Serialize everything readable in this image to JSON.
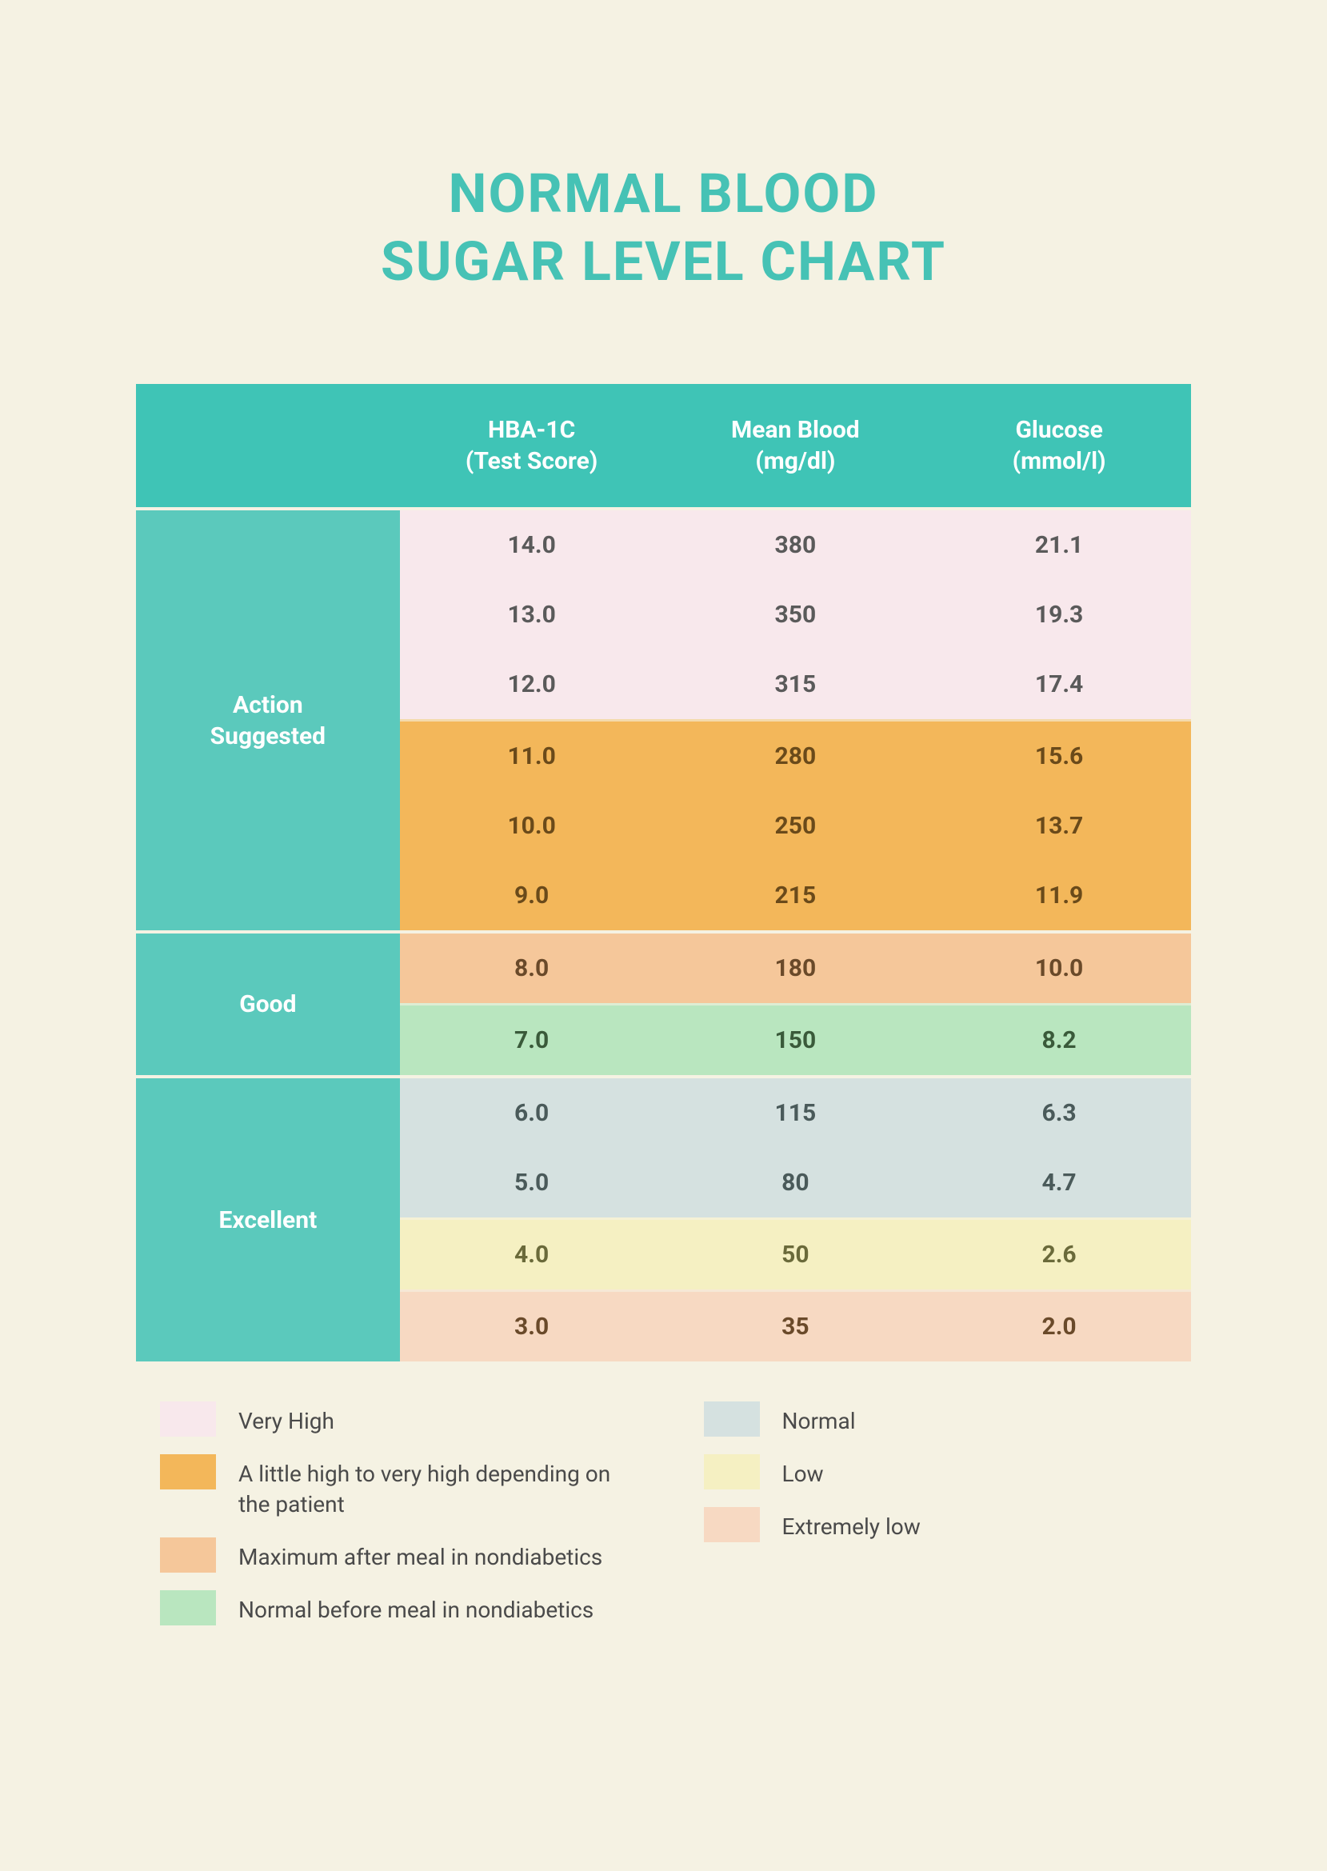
{
  "title_line1": "NORMAL BLOOD",
  "title_line2": "SUGAR LEVEL CHART",
  "colors": {
    "page_bg": "#f5f2e3",
    "header_bg": "#3fc4b6",
    "category_bg": "#5bc9bc",
    "title_color": "#46c2b5",
    "header_text": "#ffffff",
    "cell_text": "#5a5a5a",
    "cell_text_dark": "#6a5a3a",
    "very_high": "#f8e8ec",
    "high_depends": "#f3b75a",
    "max_after_meal": "#f5c79a",
    "normal_before_meal": "#b9e6bf",
    "normal": "#d5e1e0",
    "low": "#f5f0c2",
    "extremely_low": "#f7d9c2"
  },
  "columns": [
    {
      "line1": "HBA-1C",
      "line2": "(Test Score)"
    },
    {
      "line1": "Mean Blood",
      "line2": "(mg/dl)"
    },
    {
      "line1": "Glucose",
      "line2": "(mmol/l)"
    }
  ],
  "sections": [
    {
      "label": "Action\nSuggested",
      "bands": [
        {
          "color_key": "very_high",
          "text_color": "#5a5a5a",
          "rows": [
            [
              "14.0",
              "380",
              "21.1"
            ],
            [
              "13.0",
              "350",
              "19.3"
            ],
            [
              "12.0",
              "315",
              "17.4"
            ]
          ]
        },
        {
          "color_key": "high_depends",
          "text_color": "#6a4a1a",
          "rows": [
            [
              "11.0",
              "280",
              "15.6"
            ],
            [
              "10.0",
              "250",
              "13.7"
            ],
            [
              "9.0",
              "215",
              "11.9"
            ]
          ]
        }
      ]
    },
    {
      "label": "Good",
      "bands": [
        {
          "color_key": "max_after_meal",
          "text_color": "#6a4a2a",
          "rows": [
            [
              "8.0",
              "180",
              "10.0"
            ]
          ]
        },
        {
          "color_key": "normal_before_meal",
          "text_color": "#3a5a3a",
          "rows": [
            [
              "7.0",
              "150",
              "8.2"
            ]
          ]
        }
      ]
    },
    {
      "label": "Excellent",
      "bands": [
        {
          "color_key": "normal",
          "text_color": "#4a5a5a",
          "rows": [
            [
              "6.0",
              "115",
              "6.3"
            ],
            [
              "5.0",
              "80",
              "4.7"
            ]
          ]
        },
        {
          "color_key": "low",
          "text_color": "#6a6a3a",
          "rows": [
            [
              "4.0",
              "50",
              "2.6"
            ]
          ]
        },
        {
          "color_key": "extremely_low",
          "text_color": "#6a4a2a",
          "rows": [
            [
              "3.0",
              "35",
              "2.0"
            ]
          ]
        }
      ]
    }
  ],
  "legend_left": [
    {
      "color_key": "very_high",
      "label": "Very High"
    },
    {
      "color_key": "high_depends",
      "label": "A little high to very high depending on the patient"
    },
    {
      "color_key": "max_after_meal",
      "label": "Maximum after meal in nondiabetics"
    },
    {
      "color_key": "normal_before_meal",
      "label": "Normal before meal in nondiabetics"
    }
  ],
  "legend_right": [
    {
      "color_key": "normal",
      "label": "Normal"
    },
    {
      "color_key": "low",
      "label": "Low"
    },
    {
      "color_key": "extremely_low",
      "label": "Extremely low"
    }
  ]
}
